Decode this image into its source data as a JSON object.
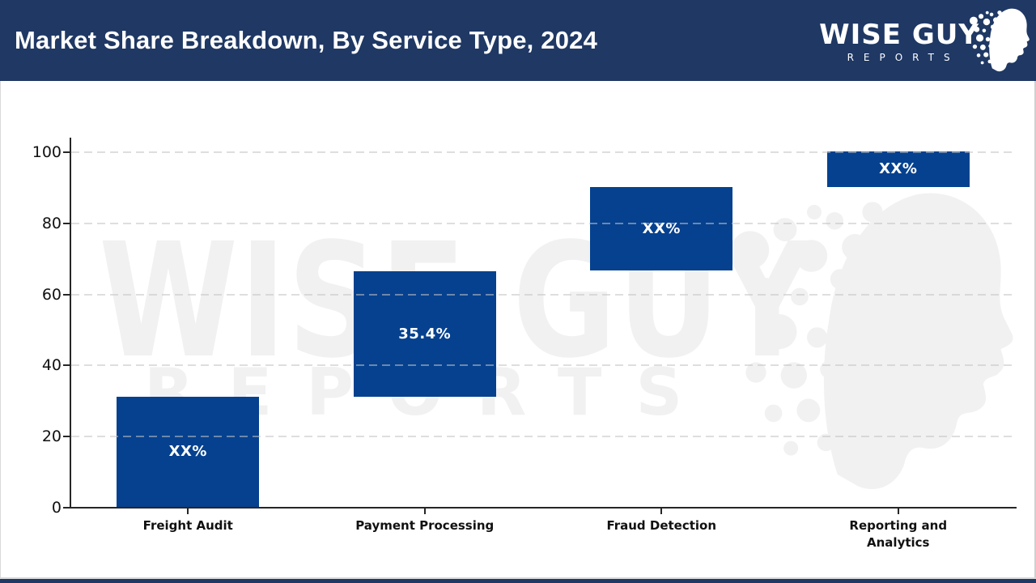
{
  "theme": {
    "header_navy": "#1f3864",
    "footer_navy": "#1f3864",
    "bar_blue": "#05418f",
    "watermark_gray": "#f1f1f1",
    "axis_black": "#262626",
    "gridline_gray": "#c3c3c3"
  },
  "header": {
    "title": "Market Share Breakdown, By Service Type, 2024"
  },
  "logo": {
    "line1": "WISE GUY",
    "line2": "REPORTS"
  },
  "watermark": {
    "line1": "WISE GUY",
    "line2": "REPORTS"
  },
  "chart_data": {
    "type": "bar",
    "subtype": "waterfall-floating-bars",
    "title": "Market Share Breakdown, By Service Type, 2024",
    "categories": [
      "Freight Audit",
      "Payment Processing",
      "Fraud Detection",
      "Reporting and Analytics"
    ],
    "segments": [
      {
        "category": "Freight Audit",
        "start": 0,
        "end": 31,
        "label": "XX%"
      },
      {
        "category": "Payment Processing",
        "start": 31,
        "end": 66.4,
        "label": "35.4%"
      },
      {
        "category": "Fraud Detection",
        "start": 66.4,
        "end": 90,
        "label": "XX%"
      },
      {
        "category": "Reporting and Analytics",
        "start": 90,
        "end": 100,
        "label": "XX%"
      }
    ],
    "xlabel": "",
    "ylabel": "",
    "ylim": [
      0,
      100
    ],
    "yticks": [
      0,
      20,
      40,
      60,
      80,
      100
    ],
    "grid": "horizontal dashed, drawn over bars",
    "legend": "none",
    "bar_color": "#05418f",
    "value_label_color": "#ffffff"
  }
}
